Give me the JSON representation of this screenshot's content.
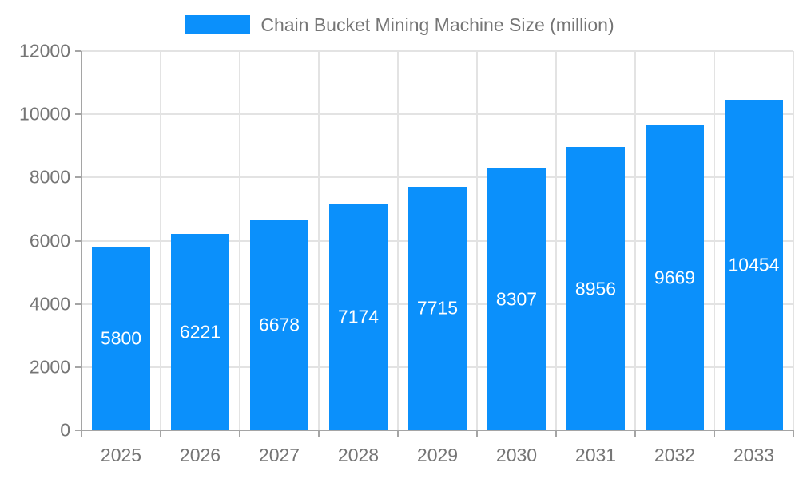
{
  "chart_data": {
    "type": "bar",
    "title": "Chain Bucket Mining Machine Size (million)",
    "categories": [
      "2025",
      "2026",
      "2027",
      "2028",
      "2029",
      "2030",
      "2031",
      "2032",
      "2033"
    ],
    "values": [
      5800,
      6221,
      6678,
      7174,
      7715,
      8307,
      8956,
      9669,
      10454
    ],
    "value_labels": [
      "5800",
      "6221",
      "6678",
      "7174",
      "7715",
      "8307",
      "8956",
      "9669",
      "10454"
    ],
    "xlabel": "",
    "ylabel": "",
    "ylim": [
      0,
      12000
    ],
    "ytick_step": 2000,
    "ytick_labels": [
      "0",
      "2000",
      "4000",
      "6000",
      "8000",
      "10000",
      "12000"
    ],
    "grid": "on",
    "legend_position": "top-center",
    "colors": {
      "bar": "#0b90fb",
      "value_label": "#ffffff",
      "tick_label": "#757575",
      "legend_text": "#757575",
      "axis_line": "#a5a5a5",
      "grid_line": "#e3e3e3",
      "background": "#ffffff"
    }
  }
}
